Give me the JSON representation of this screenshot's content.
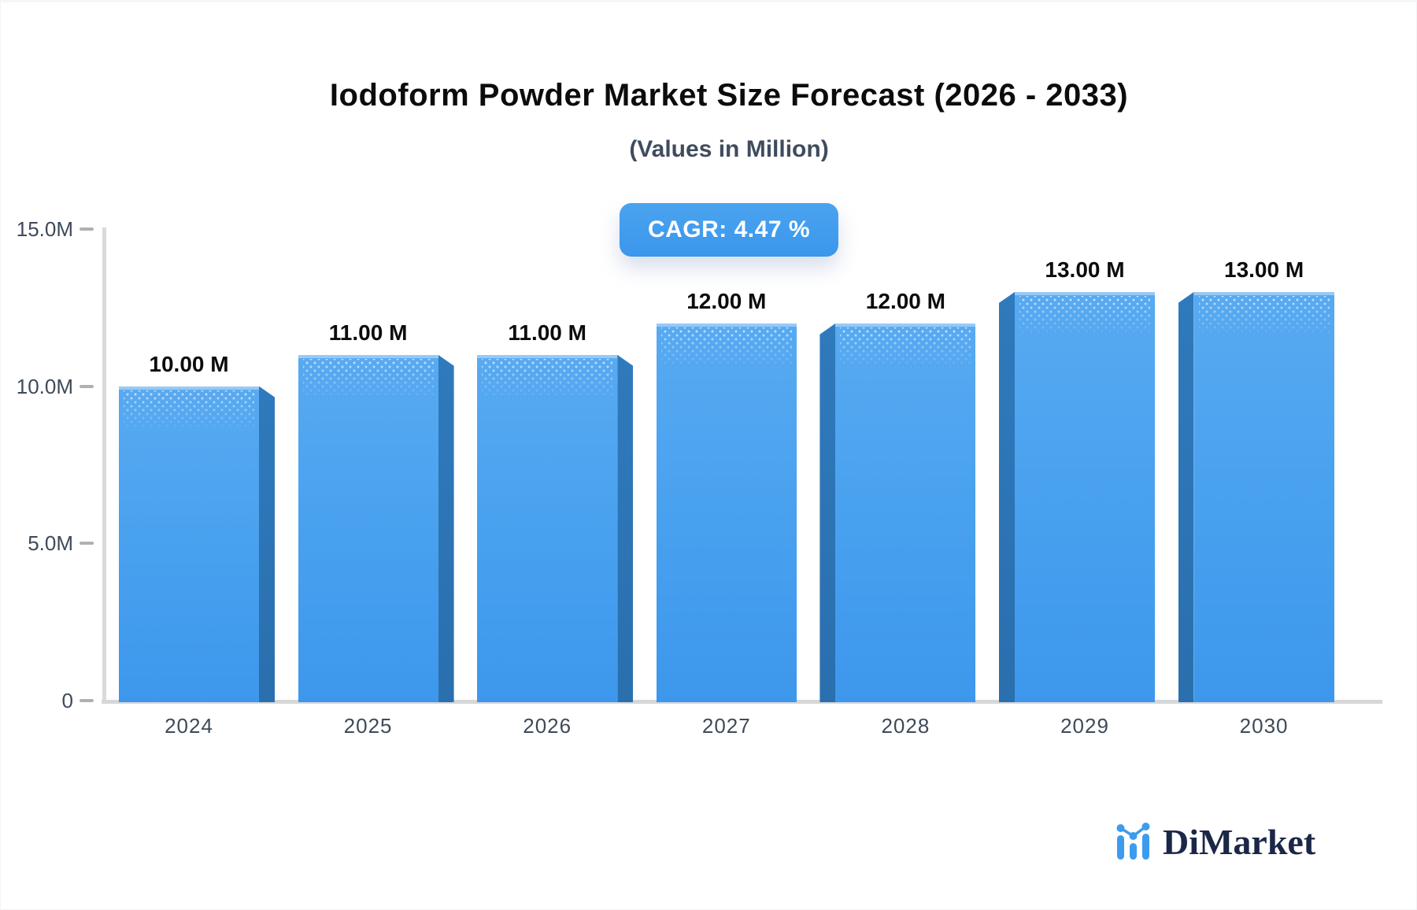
{
  "header": {
    "title": "Iodoform Powder Market Size Forecast (2026 - 2033)",
    "subtitle": "(Values in Million)"
  },
  "badge": {
    "label": "CAGR: 4.47 %"
  },
  "logo": {
    "name": "DiMarket",
    "icon": "bar-line-chart-icon"
  },
  "colors": {
    "bar_face_top": "#58aaf1",
    "bar_face_bottom": "#3d97ec",
    "bar_side": "#2d74b6",
    "badge_bg": "#3f9ded",
    "badge_text": "#ffffff",
    "axis_line": "#d6d7d9",
    "tick_label": "#3e4a59",
    "value_label": "#0c0c0c",
    "logo_blue": "#3d9bee",
    "logo_navy": "#1a2747"
  },
  "chart_data": {
    "type": "bar",
    "title": "Iodoform Powder Market Size Forecast (2026 - 2033)",
    "subtitle": "(Values in Million)",
    "categories": [
      "2024",
      "2025",
      "2026",
      "2027",
      "2028",
      "2029",
      "2030"
    ],
    "values": [
      10,
      11,
      11,
      12,
      12,
      13,
      13
    ],
    "bar_labels": [
      "10.00 M",
      "11.00 M",
      "11.00 M",
      "12.00 M",
      "12.00 M",
      "13.00 M",
      "13.00 M"
    ],
    "unit": "Million",
    "ylim": [
      0,
      15
    ],
    "yticks": [
      {
        "value": 15,
        "label": "15.0M"
      },
      {
        "value": 10,
        "label": "10.0M"
      },
      {
        "value": 5,
        "label": "5.0M"
      },
      {
        "value": 0,
        "label": "0"
      }
    ],
    "grid": false,
    "legend": null,
    "style": "3d-extruded-bars, extrusion faces outward from center bar"
  }
}
